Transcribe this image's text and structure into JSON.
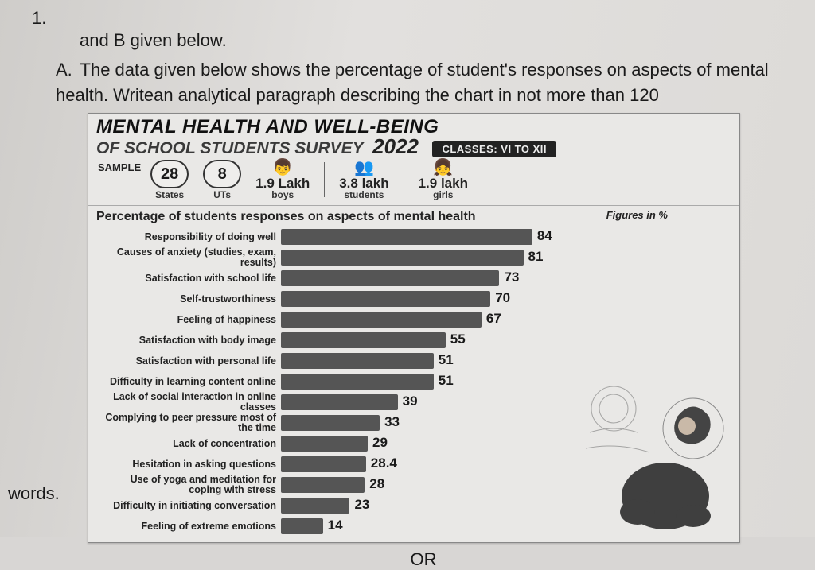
{
  "question": {
    "number": "1.",
    "lineA": "and B given below.",
    "label": "A.",
    "text": "The data given below shows the percentage of student's responses on aspects of mental health. Writean analytical paragraph describing the chart in not more than 120",
    "wordsSuffix": "words.",
    "or": "OR"
  },
  "infographic": {
    "title1": "MENTAL HEALTH AND WELL-BEING",
    "title2": "OF SCHOOL STUDENTS SURVEY",
    "year": "2022",
    "classesBadge": "CLASSES: VI TO XII",
    "sampleLabel": "SAMPLE",
    "pills": [
      {
        "value": "28",
        "sub": "States"
      },
      {
        "value": "8",
        "sub": "UTs"
      }
    ],
    "stats": [
      {
        "icon": "👦",
        "num": "1.9 Lakh",
        "sub": "boys"
      },
      {
        "icon": "👥",
        "num": "3.8 lakh",
        "sub": "students"
      },
      {
        "icon": "👧",
        "num": "1.9 lakh",
        "sub": "girls"
      }
    ],
    "chartTitle": "Percentage of students responses on aspects of mental health",
    "figuresLabel": "Figures in %",
    "maxValue": 100,
    "barColor": "#555555",
    "valueColor": "#1a1a1a",
    "bars": [
      {
        "label": "Responsibility of doing well",
        "value": 84
      },
      {
        "label": "Causes of anxiety (studies, exam, results)",
        "value": 81
      },
      {
        "label": "Satisfaction with school life",
        "value": 73
      },
      {
        "label": "Self-trustworthiness",
        "value": 70
      },
      {
        "label": "Feeling of happiness",
        "value": 67
      },
      {
        "label": "Satisfaction with body image",
        "value": 55
      },
      {
        "label": "Satisfaction with personal life",
        "value": 51
      },
      {
        "label": "Difficulty in learning content online",
        "value": 51
      },
      {
        "label": "Lack of social interaction in online classes",
        "value": 39
      },
      {
        "label": "Complying to peer pressure most of the time",
        "value": 33
      },
      {
        "label": "Lack of concentration",
        "value": 29
      },
      {
        "label": "Hesitation in asking questions",
        "value": 28.4
      },
      {
        "label": "Use of yoga and meditation for coping with stress",
        "value": 28
      },
      {
        "label": "Difficulty in initiating conversation",
        "value": 23
      },
      {
        "label": "Feeling of extreme emotions",
        "value": 14
      }
    ]
  }
}
